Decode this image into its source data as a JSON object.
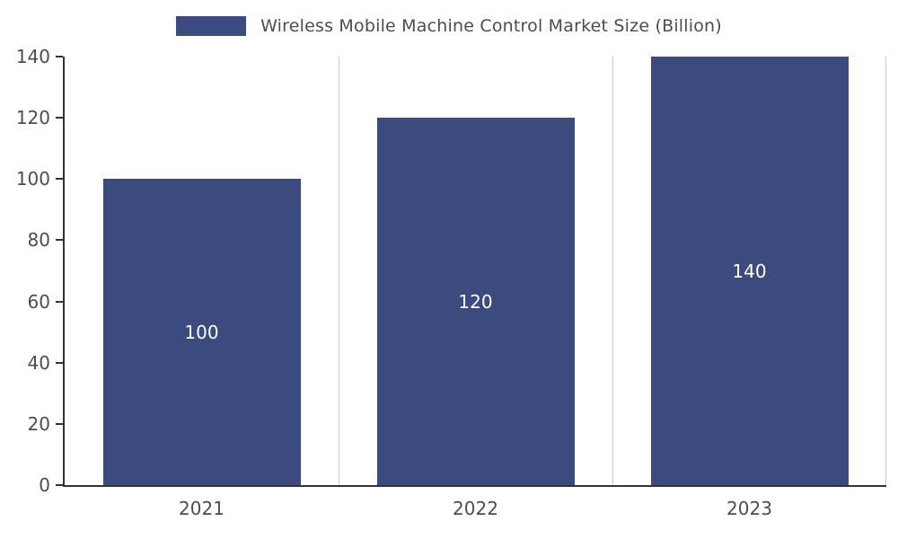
{
  "chart_data": {
    "type": "bar",
    "title": "Wireless Mobile Machine Control Market Size (Billion)",
    "categories": [
      "2021",
      "2022",
      "2023"
    ],
    "values": [
      100,
      120,
      140
    ],
    "data_labels": [
      "100",
      "120",
      "140"
    ],
    "xlabel": "",
    "ylabel": "",
    "ylim": [
      0,
      140
    ],
    "yticks": [
      0,
      20,
      40,
      60,
      80,
      100,
      120,
      140
    ],
    "legend_position": "top",
    "grid": "vertical-category-separators",
    "colors": {
      "bar": "#3B4B80",
      "bar_label": "#ffffff",
      "axis_line": "#333333",
      "tick_text": "#4d4d4d",
      "grid_line": "#cccccc",
      "title_text": "#4d4d4d"
    }
  }
}
